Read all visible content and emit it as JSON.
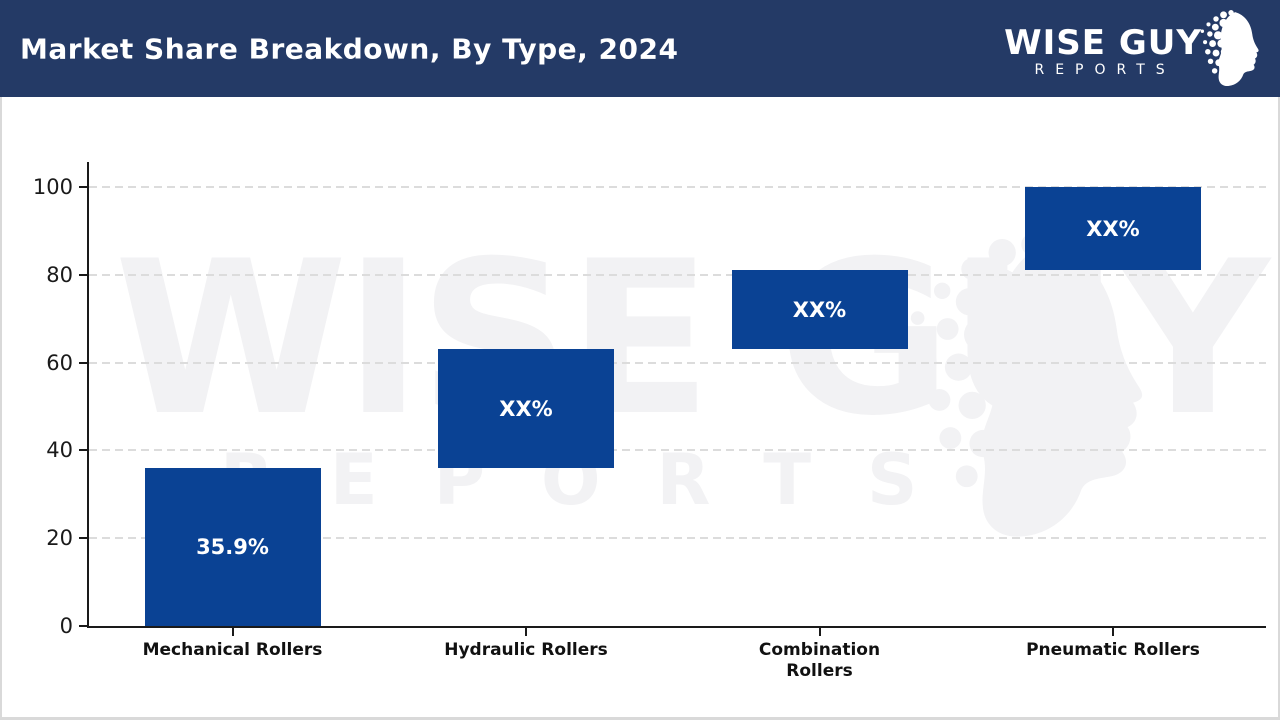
{
  "header": {
    "title": "Market Share Breakdown, By Type, 2024",
    "bg_color": "#243a66",
    "logo": {
      "line1": "WISE GUY",
      "line2": "REPORTS"
    }
  },
  "watermark": {
    "line1": "WISE GUY",
    "line2": "REPORTS"
  },
  "chart_data": {
    "type": "bar",
    "variant": "waterfall",
    "title": "Market Share Breakdown, By Type, 2024",
    "categories": [
      "Mechanical Rollers",
      "Hydraulic Rollers",
      "Combination\nRollers",
      "Pneumatic Rollers"
    ],
    "series": [
      {
        "name": "Market share (%)",
        "segments": [
          {
            "category": "Mechanical Rollers",
            "start": 0,
            "end": 35.9,
            "label": "35.9%"
          },
          {
            "category": "Hydraulic Rollers",
            "start": 35.9,
            "end": 63,
            "label": "XX%"
          },
          {
            "category": "Combination Rollers",
            "start": 63,
            "end": 81,
            "label": "XX%"
          },
          {
            "category": "Pneumatic Rollers",
            "start": 81,
            "end": 100,
            "label": "XX%"
          }
        ]
      }
    ],
    "xlabel": "",
    "ylabel": "",
    "ylim": [
      0,
      100
    ],
    "yticks": [
      0,
      20,
      40,
      60,
      80,
      100
    ],
    "grid": "horizontal-dashed",
    "gridline_color": "#dcdcdc",
    "bar_color": "#0a4294",
    "bar_label_color": "#ffffff",
    "legend": "none"
  }
}
